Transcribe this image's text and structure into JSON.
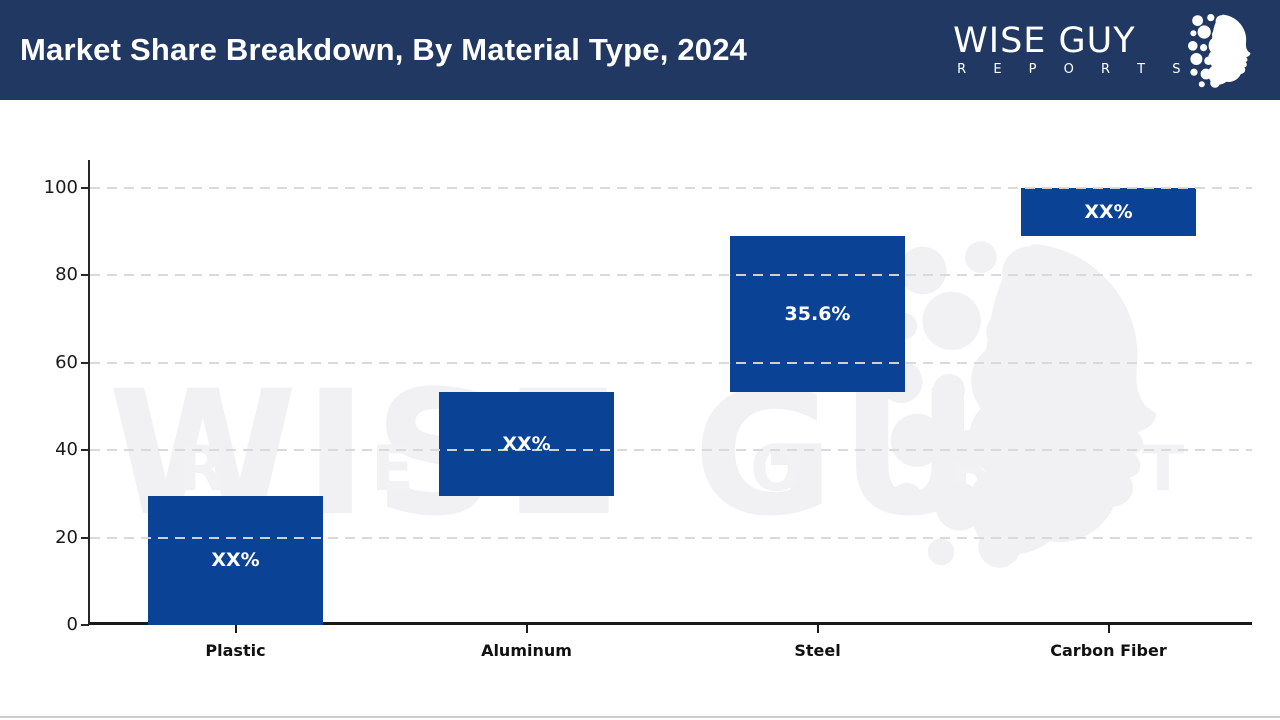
{
  "header": {
    "title": "Market Share Breakdown, By Material Type, 2024",
    "background_color": "#213862",
    "logo": {
      "line1": "WISE GUY",
      "line2": "R E P O R T S",
      "face_icon": "dotted-head-profile"
    }
  },
  "watermark": {
    "line1": "WISE GUY",
    "line2": "R E P O R T S",
    "face_icon": "dotted-head-profile",
    "color": "#f1f1f4"
  },
  "chart_data": {
    "type": "bar",
    "variant": "waterfall",
    "title": "Market Share Breakdown, By Material Type, 2024",
    "categories": [
      "Plastic",
      "Aluminum",
      "Steel",
      "Carbon Fiber"
    ],
    "segments": [
      {
        "category": "Plastic",
        "start": 0,
        "end": 29.5,
        "value": 29.5,
        "label": "XX%"
      },
      {
        "category": "Aluminum",
        "start": 29.5,
        "end": 53.3,
        "value": 23.8,
        "label": "XX%"
      },
      {
        "category": "Steel",
        "start": 53.3,
        "end": 88.9,
        "value": 35.6,
        "label": "35.6%"
      },
      {
        "category": "Carbon Fiber",
        "start": 88.9,
        "end": 100,
        "value": 11.1,
        "label": "XX%"
      }
    ],
    "xlabel": "",
    "ylabel": "",
    "ylim": [
      0,
      106.3
    ],
    "yticks": [
      0,
      20,
      40,
      60,
      80,
      100
    ],
    "grid": "horizontal dashed, drawn above bars",
    "legend": "none",
    "bar_color": "#0A4295",
    "bar_label_color": "#ffffff",
    "gridline_color": "#d8d8d8",
    "axis_color": "#1a1a1a"
  }
}
